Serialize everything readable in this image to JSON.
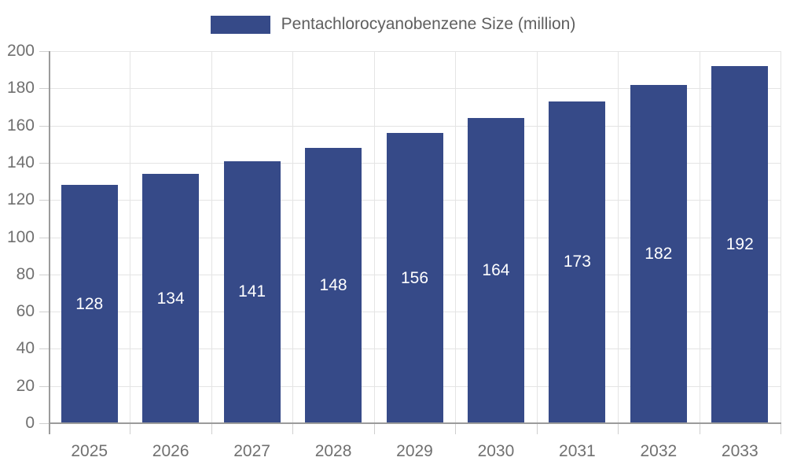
{
  "chart_data": {
    "type": "bar",
    "legend": "Pentachlorocyanobenzene Size (million)",
    "categories": [
      "2025",
      "2026",
      "2027",
      "2028",
      "2029",
      "2030",
      "2031",
      "2032",
      "2033"
    ],
    "values": [
      128,
      134,
      141,
      148,
      156,
      164,
      173,
      182,
      192
    ],
    "title": "",
    "xlabel": "",
    "ylabel": "",
    "ylim": [
      0,
      200
    ],
    "ytick_step": 20,
    "ytick_labels": [
      "0",
      "20",
      "40",
      "60",
      "80",
      "100",
      "120",
      "140",
      "160",
      "180",
      "200"
    ],
    "grid": true,
    "legend_position": "top-center",
    "bar_color": "#364a88",
    "bar_label_color": "#ffffff",
    "axis_text_color": "#707070",
    "legend_text_color": "#5f5f5f",
    "gridline_color": "#e4e4e4",
    "spine_color": "#9b9b9b"
  }
}
